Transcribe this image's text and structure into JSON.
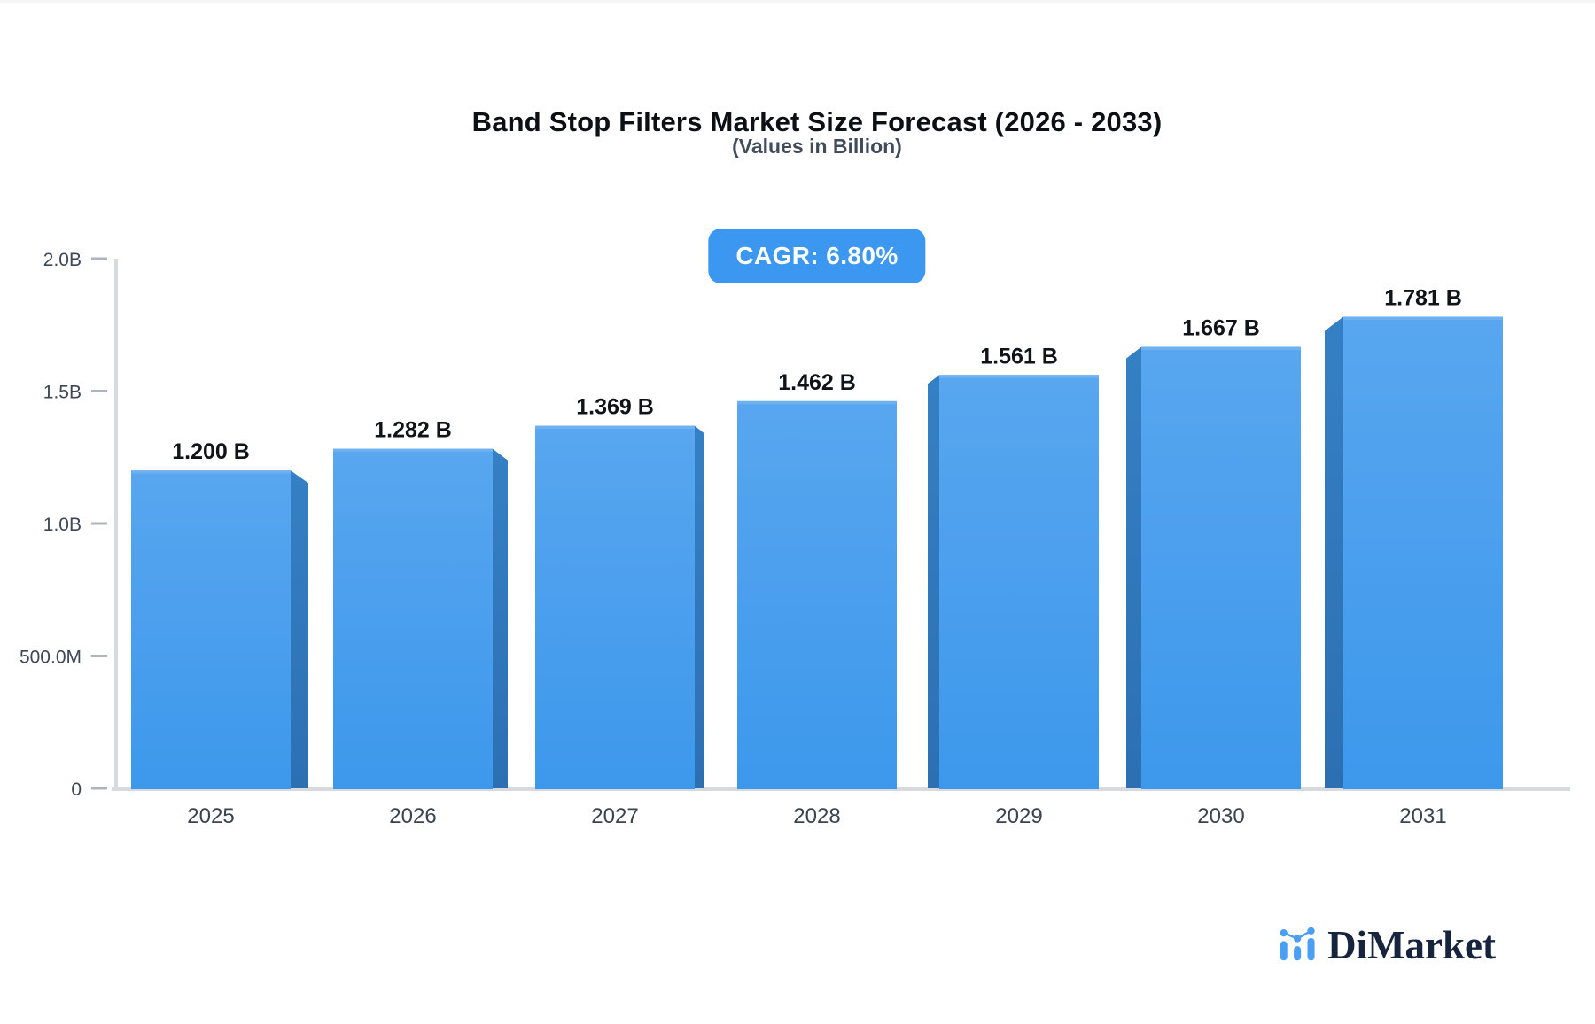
{
  "header": {
    "title": "Band Stop Filters Market Size Forecast (2026 - 2033)",
    "subtitle": "(Values in Billion)"
  },
  "badge": {
    "label": "CAGR: 6.80%",
    "color": "#3b97f0"
  },
  "chart_data": {
    "type": "bar",
    "title": "Band Stop Filters Market Size Forecast (2026 - 2033)",
    "subtitle": "(Values in Billion)",
    "categories": [
      "2025",
      "2026",
      "2027",
      "2028",
      "2029",
      "2030",
      "2031"
    ],
    "values": [
      1.2,
      1.282,
      1.369,
      1.462,
      1.561,
      1.667,
      1.781
    ],
    "value_labels": [
      "1.200 B",
      "1.282 B",
      "1.369 B",
      "1.462 B",
      "1.561 B",
      "1.667 B",
      "1.781 B"
    ],
    "unit": "Billion",
    "xlabel": "",
    "ylabel": "",
    "ylim": [
      0,
      2.0
    ],
    "yticks": [
      {
        "value": 0,
        "label": "0"
      },
      {
        "value": 0.5,
        "label": "500.0M"
      },
      {
        "value": 1.0,
        "label": "1.0B"
      },
      {
        "value": 1.5,
        "label": "1.5B"
      },
      {
        "value": 2.0,
        "label": "2.0B"
      }
    ],
    "grid": false,
    "legend": false,
    "bar_style": "3d-perspective",
    "colors": {
      "bar_face_top": "#58a6ef",
      "bar_face_bottom": "#3d98ec",
      "bar_top_edge": "#6fb0f1",
      "bar_side_top": "#3580c4",
      "bar_side_bottom": "#2c70b2",
      "axis_line": "#d7d9de",
      "tick_mark": "#aeb4be",
      "tick_label": "#3e4756",
      "category_label": "#3a4350",
      "value_label": "#101318"
    }
  },
  "logo": {
    "text": "DiMarket",
    "icon": "bar-chart-logo-icon",
    "text_color": "#16243e",
    "icon_color": "#4a9ff5"
  }
}
